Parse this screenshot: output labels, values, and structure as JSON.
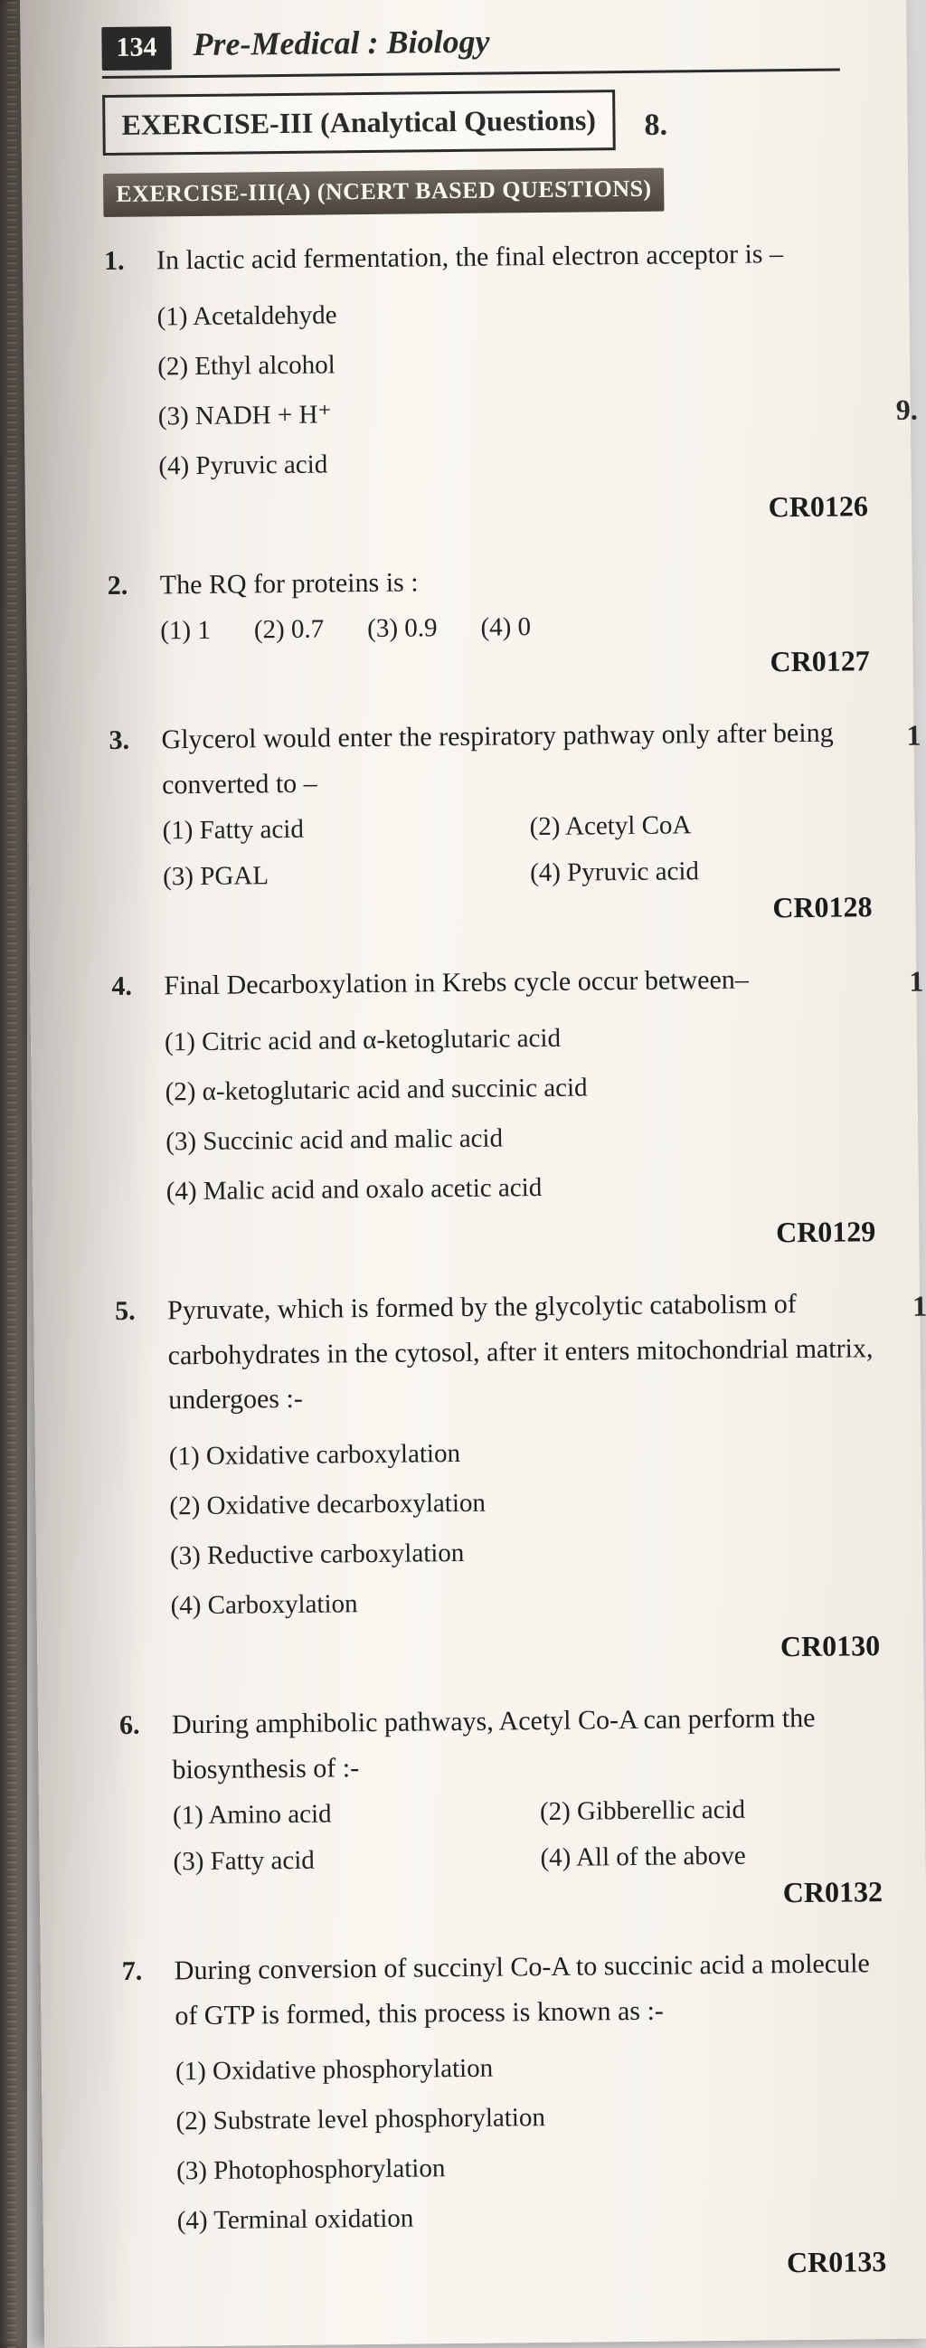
{
  "page_number": "134",
  "header_title": "Pre-Medical : Biology",
  "exercise_box": "EXERCISE-III (Analytical Questions)",
  "side_marker": "8.",
  "section_bar": "EXERCISE-III(A) (NCERT BASED QUESTIONS)",
  "questions": [
    {
      "num": "1",
      "text": "In lactic acid fermentation, the final electron acceptor is –",
      "options_layout": "stack",
      "options": [
        "(1) Acetaldehyde",
        "(2) Ethyl alcohol",
        "(3) NADH + H⁺",
        "(4) Pyruvic acid"
      ],
      "code": "CR0126",
      "right_num": "9."
    },
    {
      "num": "2",
      "text": "The RQ for proteins is :",
      "options_layout": "inline",
      "options": [
        "(1) 1",
        "(2) 0.7",
        "(3) 0.9",
        "(4) 0"
      ],
      "code": "CR0127",
      "right_num": ""
    },
    {
      "num": "3",
      "text": "Glycerol would enter the respiratory pathway only after being converted to –",
      "options_layout": "grid2",
      "options": [
        "(1) Fatty acid",
        "(2) Acetyl CoA",
        "(3) PGAL",
        "(4) Pyruvic acid"
      ],
      "code": "CR0128",
      "right_num": "1"
    },
    {
      "num": "4",
      "text": "Final Decarboxylation in Krebs cycle occur between–",
      "options_layout": "stack",
      "options": [
        "(1) Citric acid and α-ketoglutaric acid",
        "(2) α-ketoglutaric acid and succinic acid",
        "(3) Succinic acid and malic acid",
        "(4) Malic acid and oxalo acetic acid"
      ],
      "code": "CR0129",
      "right_num": "1"
    },
    {
      "num": "5",
      "text": "Pyruvate, which is formed by the glycolytic catabolism of carbohydrates in the cytosol, after it enters mitochondrial matrix, undergoes :-",
      "options_layout": "stack",
      "options": [
        "(1) Oxidative carboxylation",
        "(2) Oxidative decarboxylation",
        "(3) Reductive carboxylation",
        "(4) Carboxylation"
      ],
      "code": "CR0130",
      "right_num": "1"
    },
    {
      "num": "6",
      "text": "During amphibolic pathways, Acetyl Co-A can perform the biosynthesis of :-",
      "options_layout": "grid2",
      "options": [
        "(1) Amino acid",
        "(2) Gibberellic acid",
        "(3) Fatty acid",
        "(4) All of the above"
      ],
      "code": "CR0132",
      "right_num": ""
    },
    {
      "num": "7",
      "text": "During conversion of succinyl Co-A to succinic acid a molecule of GTP is formed, this process is known as :-",
      "options_layout": "stack",
      "options": [
        "(1) Oxidative phosphorylation",
        "(2) Substrate level phosphorylation",
        "(3) Photophosphorylation",
        "(4) Terminal oxidation"
      ],
      "code": "CR0133",
      "right_num": ""
    }
  ],
  "colors": {
    "text": "#1f1f1f",
    "bar_bg": "#4a433c",
    "page_bg": "#efece6"
  }
}
